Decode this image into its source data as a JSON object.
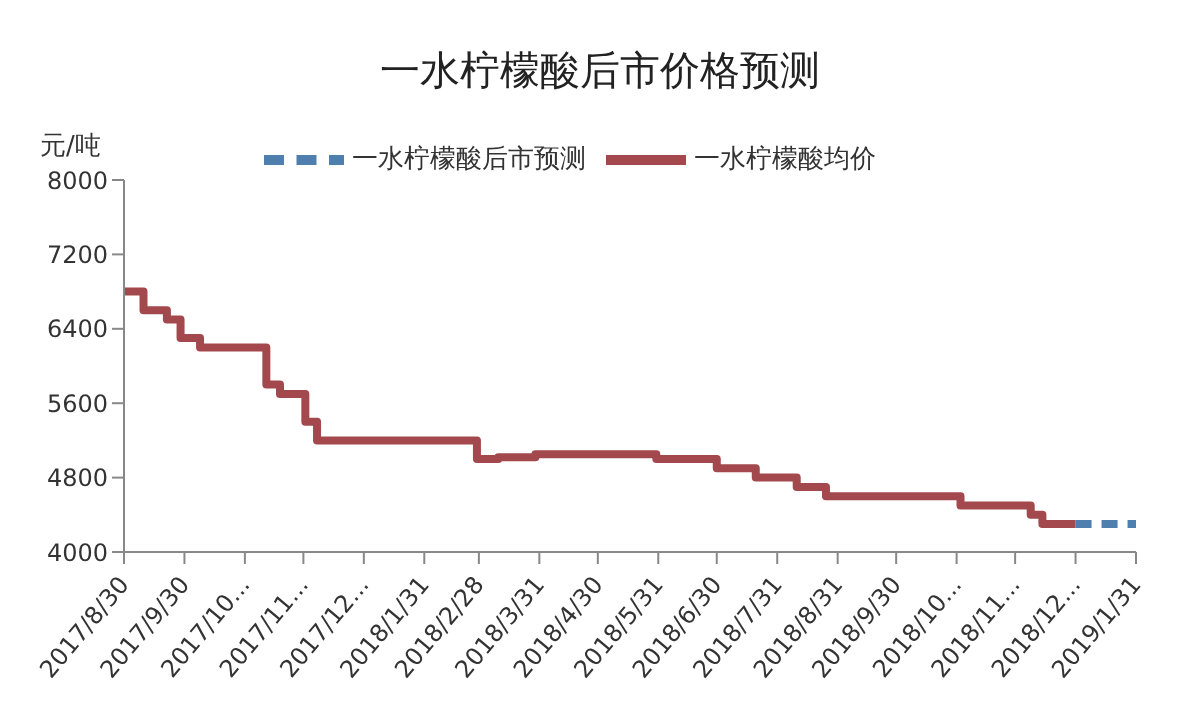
{
  "chart_data": {
    "type": "step",
    "title": "一水柠檬酸后市价格预测",
    "ylabel": "元/吨",
    "series": [
      {
        "name": "一水柠檬酸后市预测",
        "color": "#4f7fae",
        "line_style": "dashed",
        "x": [
          "2018-12-31",
          "2019-01-31"
        ],
        "values": [
          4300,
          4300
        ]
      },
      {
        "name": "一水柠檬酸均价",
        "color": "#a3484c",
        "line_style": "solid",
        "x": [
          "2017-08-30",
          "2017-09-09",
          "2017-09-21",
          "2017-09-28",
          "2017-10-08",
          "2017-11-11",
          "2017-11-18",
          "2017-12-01",
          "2017-12-07",
          "2018-02-27",
          "2018-03-10",
          "2018-03-29",
          "2018-05-30",
          "2018-06-30",
          "2018-07-20",
          "2018-08-10",
          "2018-08-25",
          "2018-11-02",
          "2018-12-08",
          "2018-12-14",
          "2018-12-31"
        ],
        "values": [
          6800,
          6600,
          6500,
          6300,
          6200,
          5800,
          5700,
          5400,
          5200,
          5000,
          5020,
          5050,
          5000,
          4900,
          4800,
          4700,
          4600,
          4500,
          4400,
          4300,
          4300
        ]
      }
    ],
    "xlim": [
      "2017-08-30",
      "2019-01-31"
    ],
    "xticks": [
      {
        "value": "2017-08-30",
        "label": "2017/8/30"
      },
      {
        "value": "2017-09-30",
        "label": "2017/9/30"
      },
      {
        "value": "2017-10-31",
        "label": "2017/10..."
      },
      {
        "value": "2017-11-30",
        "label": "2017/11..."
      },
      {
        "value": "2017-12-31",
        "label": "2017/12..."
      },
      {
        "value": "2018-01-31",
        "label": "2018/1/31"
      },
      {
        "value": "2018-02-28",
        "label": "2018/2/28"
      },
      {
        "value": "2018-03-31",
        "label": "2018/3/31"
      },
      {
        "value": "2018-04-30",
        "label": "2018/4/30"
      },
      {
        "value": "2018-05-31",
        "label": "2018/5/31"
      },
      {
        "value": "2018-06-30",
        "label": "2018/6/30"
      },
      {
        "value": "2018-07-31",
        "label": "2018/7/31"
      },
      {
        "value": "2018-08-31",
        "label": "2018/8/31"
      },
      {
        "value": "2018-09-30",
        "label": "2018/9/30"
      },
      {
        "value": "2018-10-31",
        "label": "2018/10..."
      },
      {
        "value": "2018-11-30",
        "label": "2018/11..."
      },
      {
        "value": "2018-12-31",
        "label": "2018/12..."
      },
      {
        "value": "2019-01-31",
        "label": "2019/1/31"
      }
    ],
    "ylim": [
      4000,
      8000
    ],
    "yticks": [
      4000,
      4800,
      5600,
      6400,
      7200,
      8000
    ],
    "grid": false,
    "legend": "top",
    "marker": "none"
  }
}
